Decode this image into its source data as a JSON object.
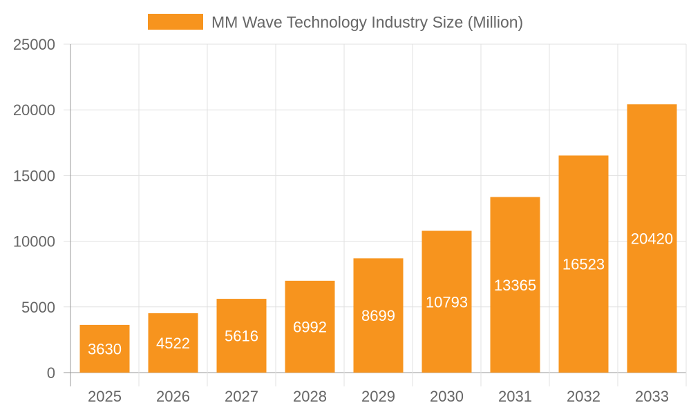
{
  "chart_data": {
    "type": "bar",
    "title": "",
    "xlabel": "",
    "ylabel": "",
    "categories": [
      "2025",
      "2026",
      "2027",
      "2028",
      "2029",
      "2030",
      "2031",
      "2032",
      "2033"
    ],
    "series": [
      {
        "name": "MM Wave Technology Industry Size (Million)",
        "values": [
          3630,
          4522,
          5616,
          6992,
          8699,
          10793,
          13365,
          16523,
          20420
        ]
      }
    ],
    "ylim": [
      0,
      25000
    ],
    "yticks": [
      0,
      5000,
      10000,
      15000,
      20000,
      25000
    ],
    "grid": true,
    "legend": "top-center",
    "data_labels": true,
    "colors": {
      "bar": "#F7941E",
      "grid": "#e0e0e0",
      "axis": "#999999",
      "text": "#666666",
      "label": "#ffffff"
    }
  }
}
